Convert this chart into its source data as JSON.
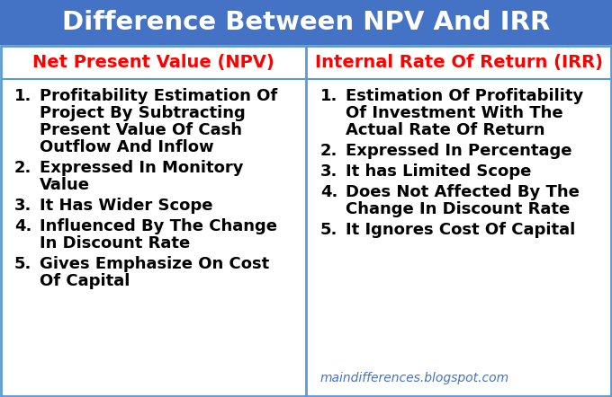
{
  "title": "Difference Between NPV And IRR",
  "title_bg_color": "#4472C4",
  "title_text_color": "#FFFFFF",
  "title_fontsize": 21,
  "header_left": "Net Present Value (NPV)",
  "header_right": "Internal Rate Of Return (IRR)",
  "header_color": "#FF0000",
  "header_fontsize": 14,
  "body_bg_color": "#FFFFFF",
  "border_color": "#5B9BD5",
  "divider_color": "#5B9BD5",
  "body_text_color": "#000000",
  "body_fontsize": 13,
  "watermark": "maindifferences.blogspot.com",
  "watermark_color": "#4472C4",
  "watermark_fontsize": 10,
  "npv_items": [
    [
      "Profitability Estimation Of",
      "Project By Subtracting",
      "Present Value Of Cash",
      "Outflow And Inflow"
    ],
    [
      "Expressed In Monitory",
      "Value"
    ],
    [
      "It Has Wider Scope"
    ],
    [
      "Influenced By The Change",
      "In Discount Rate"
    ],
    [
      "Gives Emphasize On Cost",
      "Of Capital"
    ]
  ],
  "irr_items": [
    [
      "Estimation Of Profitability",
      "Of Investment With The",
      "Actual Rate Of Return"
    ],
    [
      "Expressed In Percentage"
    ],
    [
      "It has Limited Scope"
    ],
    [
      "Does Not Affected By The",
      "Change In Discount Rate"
    ],
    [
      "It Ignores Cost Of Capital"
    ]
  ],
  "fig_width": 6.8,
  "fig_height": 4.42,
  "dpi": 100
}
